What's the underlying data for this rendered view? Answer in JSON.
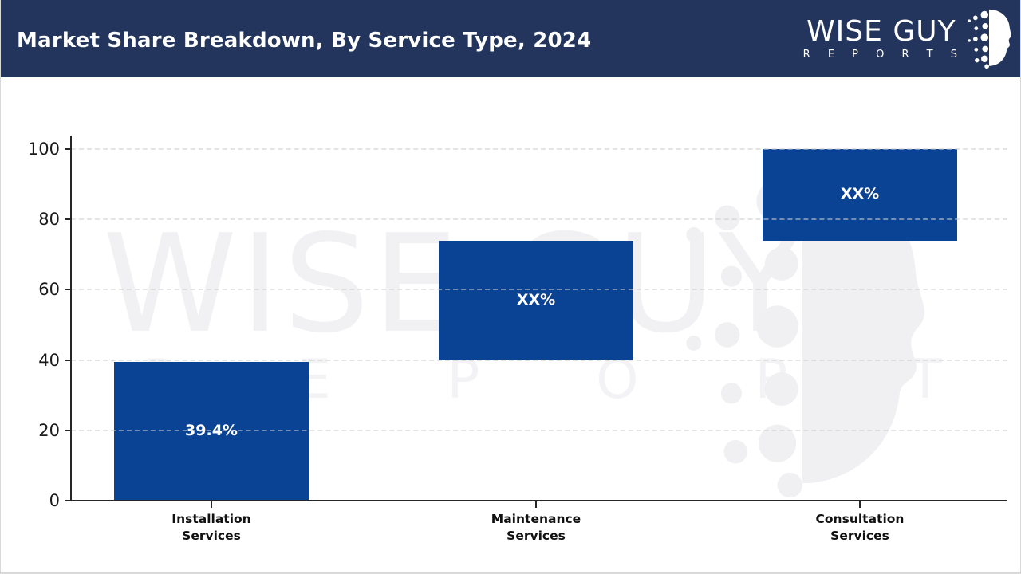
{
  "header": {
    "title": "Market Share Breakdown, By Service Type, 2024",
    "logo": {
      "wordmark": "WISE GUY",
      "reports_label": "R E P O R T S"
    }
  },
  "watermark": {
    "wordmark": "WISE GUY",
    "reports_label": "R E P O R T S"
  },
  "chart_data": {
    "type": "bar",
    "variant": "floating-waterfall",
    "title": "Market Share Breakdown, By Service Type, 2024",
    "categories": [
      "Installation\nServices",
      "Maintenance\nServices",
      "Consultation\nServices"
    ],
    "bars": [
      {
        "category": "Installation Services",
        "from": 0,
        "to": 39.4,
        "label": "39.4%"
      },
      {
        "category": "Maintenance Services",
        "from": 40,
        "to": 74,
        "label": "XX%"
      },
      {
        "category": "Consultation Services",
        "from": 74,
        "to": 100,
        "label": "XX%"
      }
    ],
    "xlabel": "",
    "ylabel": "",
    "ylim": [
      0,
      100
    ],
    "yticks": [
      0,
      20,
      40,
      60,
      80,
      100
    ],
    "grid": "dashed-horizontal",
    "legend": "none",
    "bar_color": "#0a4294",
    "bar_label_color": "#ffffff"
  },
  "colors": {
    "header_bg": "#23355c",
    "bar": "#0a4294",
    "axis": "#262626",
    "grid": "#dcdcdc",
    "watermark": "#f1f1f3"
  }
}
